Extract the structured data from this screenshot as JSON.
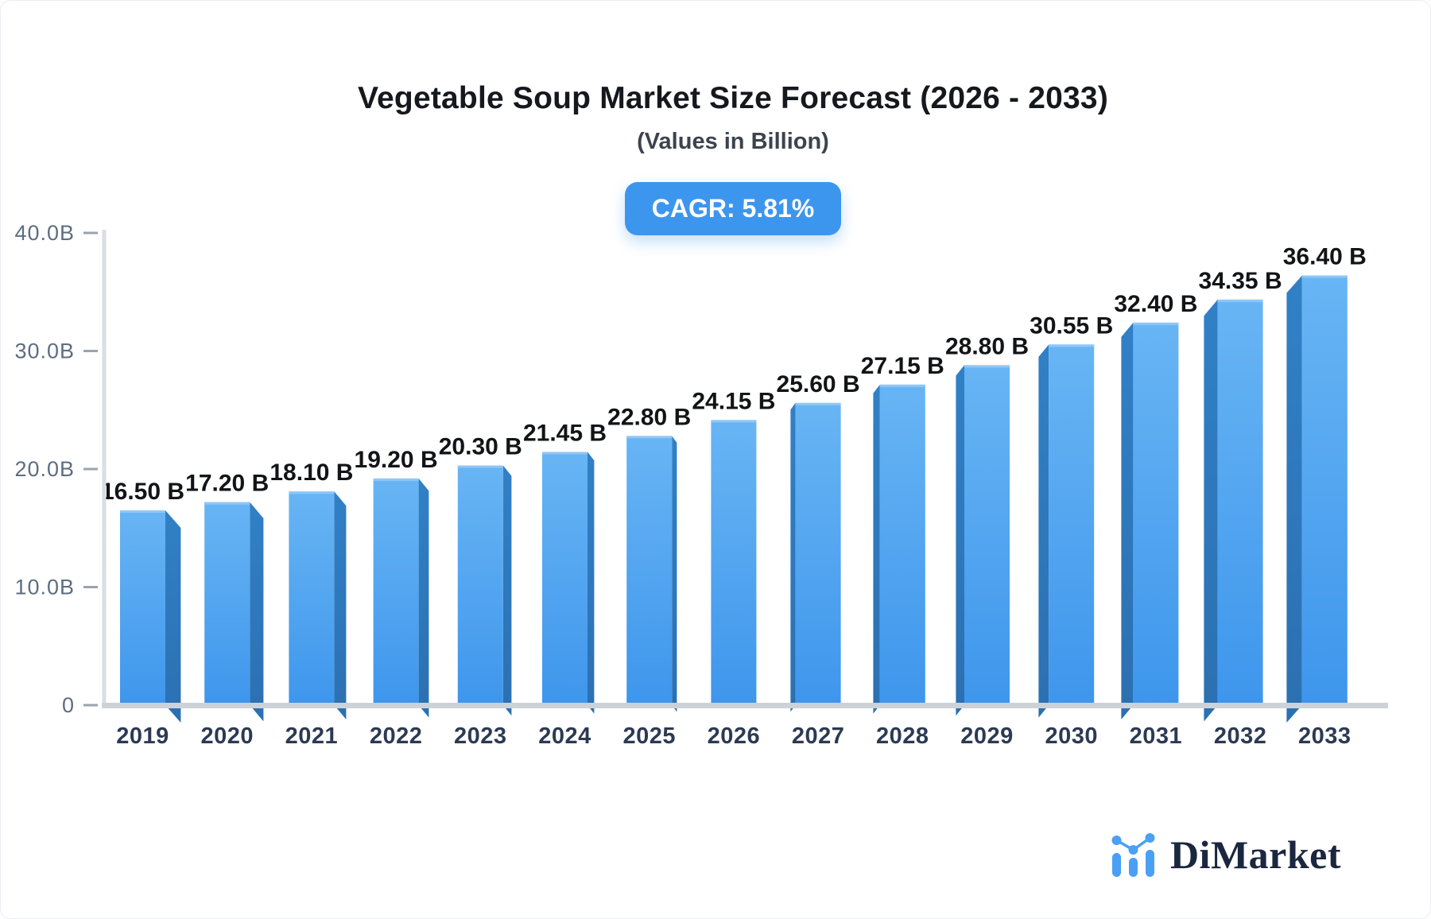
{
  "header": {
    "title": "Vegetable Soup Market Size Forecast (2026 - 2033)",
    "subtitle": "(Values in Billion)",
    "cagr_label": "CAGR: 5.81%"
  },
  "footer": {
    "logo_text": "DiMarket"
  },
  "colors": {
    "bar_face_top": "#68b5f4",
    "bar_face_bottom": "#3e96ec",
    "bar_side": "#2e77bb",
    "bar_top_highlight": "#8fc7f7",
    "badge_bg": "#3d96ee",
    "axis_line": "#dadde2",
    "baseline": "#cdd2d8",
    "tick_dash": "#9aa3ae",
    "y_label": "#5d6d82",
    "x_label": "#2c3a52",
    "value_label": "#121417",
    "logo_blue": "#4aa0f5",
    "logo_navy": "#1b2740"
  },
  "chart_data": {
    "type": "bar",
    "title": "Vegetable Soup Market Size Forecast (2026 - 2033)",
    "subtitle": "(Values in Billion)",
    "annotation": "CAGR: 5.81%",
    "categories": [
      "2019",
      "2020",
      "2021",
      "2022",
      "2023",
      "2024",
      "2025",
      "2026",
      "2027",
      "2028",
      "2029",
      "2030",
      "2031",
      "2032",
      "2033"
    ],
    "values": [
      16.5,
      17.2,
      18.1,
      19.2,
      20.3,
      21.45,
      22.8,
      24.15,
      25.6,
      27.15,
      28.8,
      30.55,
      32.4,
      34.35,
      36.4
    ],
    "value_labels": [
      "16.50 B",
      "17.20 B",
      "18.10 B",
      "19.20 B",
      "20.30 B",
      "21.45 B",
      "22.80 B",
      "24.15 B",
      "25.60 B",
      "27.15 B",
      "28.80 B",
      "30.55 B",
      "32.40 B",
      "34.35 B",
      "36.40 B"
    ],
    "ylabel": "",
    "xlabel": "",
    "ylim": [
      0,
      40
    ],
    "y_ticks": [
      {
        "value": 0,
        "label": "0"
      },
      {
        "value": 10,
        "label": "10.0B"
      },
      {
        "value": 20,
        "label": "20.0B"
      },
      {
        "value": 30,
        "label": "30.0B"
      },
      {
        "value": 40,
        "label": "40.0B"
      }
    ],
    "grid": false,
    "legend": false,
    "style": "pseudo-3d-perspective-bars"
  }
}
